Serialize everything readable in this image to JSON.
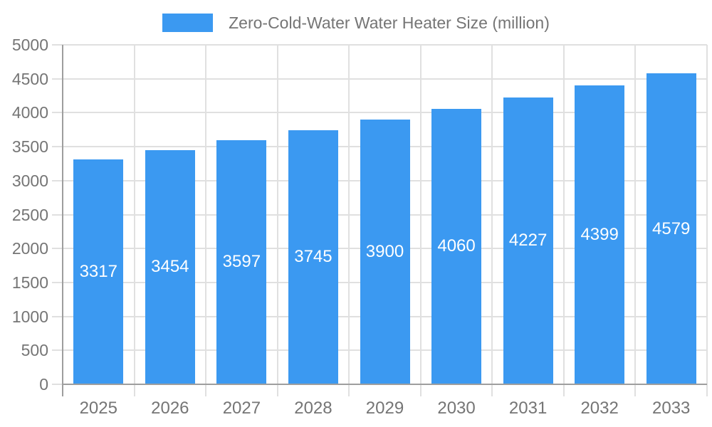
{
  "legend": {
    "label": "Zero-Cold-Water Water Heater Size (million)"
  },
  "colors": {
    "bar": "#3B99F1",
    "grid": "#E0E0E0",
    "axis": "#9E9E9E",
    "text": "#757575",
    "bar_label": "#FFFFFF",
    "background": "#FFFFFF"
  },
  "chart_data": {
    "type": "bar",
    "title": "Zero-Cold-Water Water Heater Size (million)",
    "categories": [
      "2025",
      "2026",
      "2027",
      "2028",
      "2029",
      "2030",
      "2031",
      "2032",
      "2033"
    ],
    "values": [
      3317,
      3454,
      3597,
      3745,
      3900,
      4060,
      4227,
      4399,
      4579
    ],
    "series_name": "Zero-Cold-Water Water Heater Size (million)",
    "xlabel": "",
    "ylabel": "",
    "ylim": [
      0,
      5000
    ],
    "ytick_interval": 500,
    "yticks": [
      0,
      500,
      1000,
      1500,
      2000,
      2500,
      3000,
      3500,
      4000,
      4500,
      5000
    ],
    "grid": true,
    "legend_position": "top-center",
    "value_labels": "inside-middle",
    "value_label_color": "#FFFFFF",
    "bar_color": "#3B99F1"
  }
}
